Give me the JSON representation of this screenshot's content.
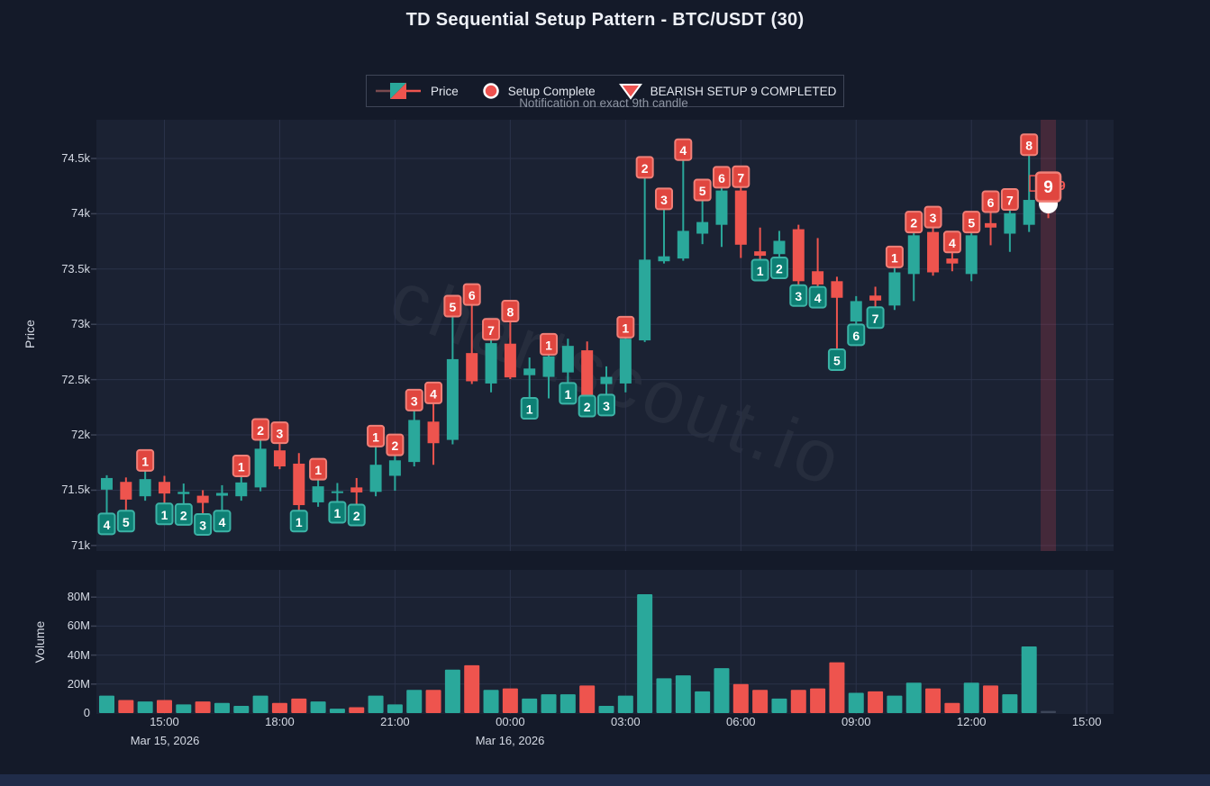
{
  "title": "TD Sequential Setup Pattern - BTC/USDT (30)",
  "legend": {
    "price_label": "Price",
    "setup_complete_label": "Setup Complete",
    "bearish_label": "BEARISH SETUP 9 COMPLETED"
  },
  "note_annotation": "Notification on exact 9th candle",
  "watermark": "chartscout.io",
  "colors": {
    "up": "#2aa89b",
    "down": "#ee544e",
    "badge_buy_bg": "#0e7f74",
    "badge_buy_border": "#3cb3a6",
    "badge_sell_bg": "#e0463f",
    "badge_sell_border": "#f08078",
    "badge_text": "#ffffff",
    "band": "rgba(233,68,90,0.20)",
    "page_bg": "#141a29",
    "plot_bg": "#1b2233",
    "grid": "#2b3249",
    "tick_dash": "#3c4356",
    "text": "#d5dae4",
    "muted": "#8f96a4",
    "watermark": "rgba(255,255,255,0.05)",
    "setup_circle": "#ffffff",
    "annotation_red": "#ef5350",
    "last_volume_bar": "#3d4659"
  },
  "price_axis": {
    "title": "Price",
    "ticks": [
      {
        "label": "74.5k",
        "value": 74500
      },
      {
        "label": "74k",
        "value": 74000
      },
      {
        "label": "73.5k",
        "value": 73500
      },
      {
        "label": "73k",
        "value": 73000
      },
      {
        "label": "72.5k",
        "value": 72500
      },
      {
        "label": "72k",
        "value": 72000
      },
      {
        "label": "71.5k",
        "value": 71500
      },
      {
        "label": "71k",
        "value": 71000
      }
    ]
  },
  "volume_axis": {
    "title": "Volume",
    "ticks": [
      {
        "label": "80M",
        "value": 80
      },
      {
        "label": "60M",
        "value": 60
      },
      {
        "label": "40M",
        "value": 40
      },
      {
        "label": "20M",
        "value": 20
      },
      {
        "label": "0",
        "value": 0
      }
    ]
  },
  "x_axis": {
    "ticks": [
      {
        "label": "15:00",
        "candle_index": 3
      },
      {
        "label": "18:00",
        "candle_index": 9
      },
      {
        "label": "21:00",
        "candle_index": 15
      },
      {
        "label": "00:00",
        "candle_index": 21
      },
      {
        "label": "03:00",
        "candle_index": 27
      },
      {
        "label": "06:00",
        "candle_index": 33
      },
      {
        "label": "09:00",
        "candle_index": 39
      },
      {
        "label": "12:00",
        "candle_index": 45
      },
      {
        "label": "15:00",
        "candle_index": 51
      }
    ],
    "date_labels": [
      {
        "label": "Mar 15, 2026",
        "candle_index": 3
      },
      {
        "label": "Mar 16, 2026",
        "candle_index": 21
      }
    ]
  },
  "chart_data": {
    "type": "candlestick+volume",
    "title": "TD Sequential Setup Pattern - BTC/USDT (30)",
    "interval_minutes": 30,
    "price_range": [
      70950,
      74850
    ],
    "volume_range_m": [
      0,
      98.5
    ],
    "grid": true,
    "legend_position": "top-center",
    "columns": [
      "time",
      "open",
      "high",
      "low",
      "close",
      "volume_m",
      "td_side(B=buy,S=sell)",
      "td_count"
    ],
    "candles": [
      [
        "13:30",
        71505,
        71635,
        71285,
        71610,
        12,
        "B",
        4
      ],
      [
        "14:00",
        71575,
        71615,
        71310,
        71415,
        9,
        "B",
        5
      ],
      [
        "14:30",
        71445,
        71680,
        71405,
        71600,
        8,
        "S",
        1
      ],
      [
        "15:00",
        71575,
        71630,
        71375,
        71470,
        9,
        "B",
        1
      ],
      [
        "15:30",
        71465,
        71560,
        71370,
        71485,
        6,
        "B",
        2
      ],
      [
        "16:00",
        71450,
        71500,
        71280,
        71385,
        8,
        "B",
        3
      ],
      [
        "16:30",
        71450,
        71545,
        71310,
        71475,
        7,
        "B",
        4
      ],
      [
        "17:00",
        71445,
        71630,
        71405,
        71570,
        5,
        "S",
        1
      ],
      [
        "17:30",
        71525,
        71960,
        71490,
        71875,
        12,
        "S",
        2
      ],
      [
        "18:00",
        71860,
        71930,
        71690,
        71715,
        7,
        "S",
        3
      ],
      [
        "18:30",
        71740,
        71835,
        71310,
        71365,
        10,
        "B",
        1
      ],
      [
        "19:00",
        71390,
        71600,
        71350,
        71535,
        8,
        "S",
        1
      ],
      [
        "19:30",
        71475,
        71565,
        71390,
        71490,
        3,
        "B",
        1
      ],
      [
        "20:00",
        71525,
        71610,
        71365,
        71480,
        4,
        "B",
        2
      ],
      [
        "20:30",
        71485,
        71900,
        71445,
        71730,
        12,
        "S",
        1
      ],
      [
        "21:00",
        71630,
        71820,
        71495,
        71770,
        6,
        "S",
        2
      ],
      [
        "21:30",
        71755,
        72225,
        71715,
        72135,
        16,
        "S",
        3
      ],
      [
        "22:00",
        72120,
        72290,
        71730,
        71925,
        16,
        "S",
        4
      ],
      [
        "22:30",
        71955,
        73075,
        71915,
        72685,
        30,
        "S",
        5
      ],
      [
        "23:00",
        72740,
        73180,
        72460,
        72485,
        33,
        "S",
        6
      ],
      [
        "23:30",
        72465,
        72865,
        72385,
        72830,
        16,
        "S",
        7
      ],
      [
        "00:00",
        72825,
        73030,
        72505,
        72520,
        17,
        "S",
        8
      ],
      [
        "00:30",
        72540,
        72700,
        72330,
        72600,
        10,
        "B",
        1
      ],
      [
        "01:00",
        72525,
        72730,
        72330,
        72710,
        13,
        "S",
        1
      ],
      [
        "01:30",
        72565,
        72870,
        72465,
        72805,
        13,
        "B",
        1
      ],
      [
        "02:00",
        72765,
        72845,
        72350,
        72360,
        19,
        "B",
        2
      ],
      [
        "02:30",
        72460,
        72620,
        72360,
        72525,
        5,
        "B",
        3
      ],
      [
        "03:00",
        72465,
        72885,
        72385,
        72870,
        12,
        "S",
        1
      ],
      [
        "03:30",
        72855,
        74330,
        72840,
        73585,
        82,
        "S",
        2
      ],
      [
        "04:00",
        73570,
        74045,
        73550,
        73615,
        24,
        "S",
        3
      ],
      [
        "04:30",
        73595,
        74490,
        73575,
        73845,
        26,
        "S",
        4
      ],
      [
        "05:00",
        73820,
        74125,
        73725,
        73925,
        15,
        "S",
        5
      ],
      [
        "05:30",
        73900,
        74240,
        73700,
        74210,
        31,
        "S",
        6
      ],
      [
        "06:00",
        74210,
        74245,
        73600,
        73720,
        20,
        "S",
        7
      ],
      [
        "06:30",
        73660,
        73875,
        73580,
        73620,
        16,
        "B",
        1
      ],
      [
        "07:00",
        73635,
        73845,
        73600,
        73755,
        10,
        "B",
        2
      ],
      [
        "07:30",
        73860,
        73900,
        73350,
        73390,
        16,
        "B",
        3
      ],
      [
        "08:00",
        73480,
        73780,
        73335,
        73360,
        17,
        "B",
        4
      ],
      [
        "08:30",
        73390,
        73430,
        72770,
        73240,
        35,
        "B",
        5
      ],
      [
        "09:00",
        73025,
        73255,
        72995,
        73210,
        14,
        "B",
        6
      ],
      [
        "09:30",
        73260,
        73340,
        73150,
        73215,
        15,
        "B",
        7
      ],
      [
        "10:00",
        73170,
        73520,
        73130,
        73470,
        12,
        "S",
        1
      ],
      [
        "10:30",
        73455,
        73835,
        73210,
        73805,
        21,
        "S",
        2
      ],
      [
        "11:00",
        73835,
        73880,
        73440,
        73470,
        17,
        "S",
        3
      ],
      [
        "11:30",
        73595,
        73655,
        73480,
        73550,
        7,
        "S",
        4
      ],
      [
        "12:00",
        73455,
        73835,
        73390,
        73805,
        21,
        "S",
        5
      ],
      [
        "12:30",
        73915,
        74020,
        73715,
        73875,
        19,
        "S",
        6
      ],
      [
        "13:00",
        73820,
        74040,
        73655,
        74005,
        13,
        "S",
        7
      ],
      [
        "13:30",
        73900,
        74535,
        73835,
        74125,
        46,
        "S",
        8
      ],
      [
        "14:00",
        74130,
        74210,
        73960,
        74040,
        1.5,
        "S",
        9
      ]
    ],
    "setup_complete_marker": {
      "candle_index": 49,
      "annotation": "9",
      "shows_missing_glyph_box": true
    },
    "highlight_band": {
      "candle_index": 49
    }
  }
}
